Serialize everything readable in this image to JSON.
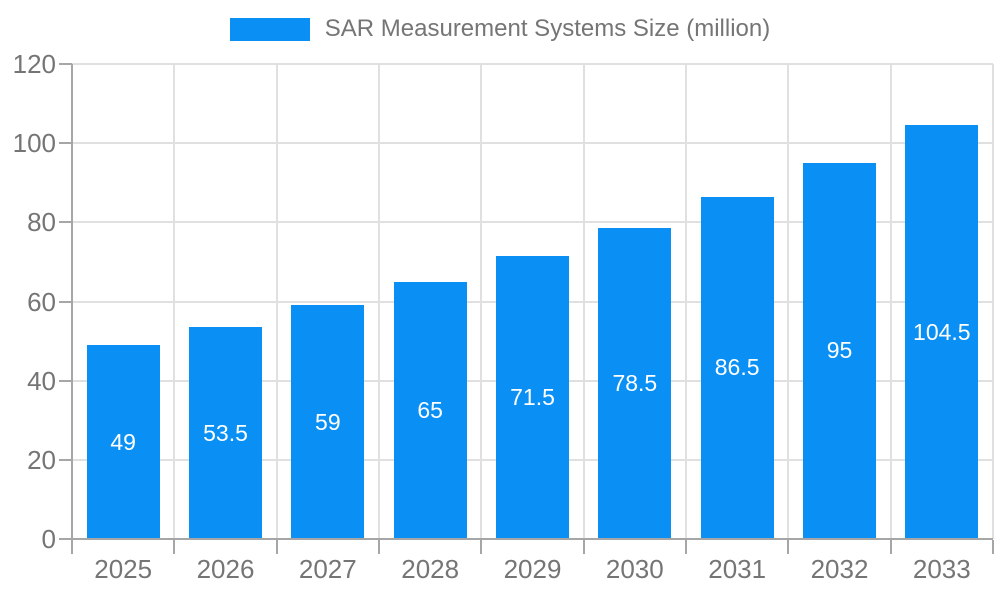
{
  "legend": {
    "label": "SAR Measurement Systems Size (million)"
  },
  "chart_data": {
    "type": "bar",
    "title": "SAR Measurement Systems Size (million)",
    "series_name": "SAR Measurement Systems Size (million)",
    "categories": [
      "2025",
      "2026",
      "2027",
      "2028",
      "2029",
      "2030",
      "2031",
      "2032",
      "2033"
    ],
    "values": [
      49,
      53.5,
      59,
      65,
      71.5,
      78.5,
      86.5,
      95,
      104.5
    ],
    "bar_labels": [
      "49",
      "53.5",
      "59",
      "65",
      "71.5",
      "78.5",
      "86.5",
      "95",
      "104.5"
    ],
    "xlabel": "",
    "ylabel": "",
    "ylim": [
      0,
      120
    ],
    "y_ticks": [
      0,
      20,
      40,
      60,
      80,
      100,
      120
    ],
    "grid": "on",
    "legend_position": "top-center",
    "colors": {
      "bar": "#0A90F5",
      "bar_label": "#ffffff",
      "axis": "#a6a6a6",
      "grid": "#e0e0e0",
      "tick_label": "#757575",
      "background": "#ffffff"
    }
  }
}
